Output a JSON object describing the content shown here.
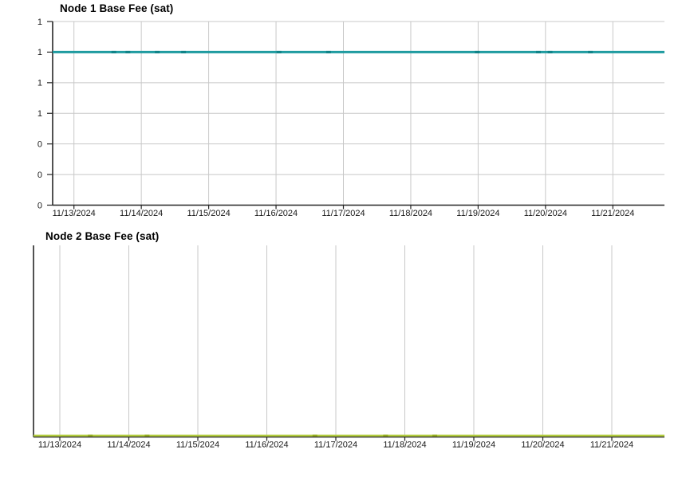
{
  "colors": {
    "background": "#ffffff",
    "grid": "#c8c8c8",
    "axis": "#262626",
    "tick_text": "#1a1a1a",
    "node1_line": "#1f9ba0",
    "node1_line_dark": "#0e8287",
    "node2_line": "#b2cc3e",
    "node2_line_dark": "#93ab1f"
  },
  "chart_data": [
    {
      "type": "line",
      "title": "Node 1 Base Fee (sat)",
      "xlabel": "",
      "ylabel": "",
      "categories": [
        "11/13/2024",
        "11/14/2024",
        "11/15/2024",
        "11/16/2024",
        "11/17/2024",
        "11/18/2024",
        "11/19/2024",
        "11/20/2024",
        "11/21/2024"
      ],
      "series": [
        {
          "name": "Node 1 base fee",
          "values": [
            1,
            1,
            1,
            1,
            1,
            1,
            1,
            1,
            1
          ],
          "color": "#1f9ba0"
        }
      ],
      "constant_value": 1,
      "ylim": [
        0,
        1.2
      ],
      "ytick_values": [
        1.2,
        1.0,
        0.8,
        0.6,
        0.4,
        0.2,
        0
      ],
      "ytick_labels": [
        "1",
        "1",
        "1",
        "1",
        "0",
        "0",
        "0"
      ],
      "grid": {
        "horizontal": true,
        "vertical": true
      },
      "legend": "none",
      "overlap_marks_frac": [
        0.1,
        0.123,
        0.171,
        0.214,
        0.37,
        0.451,
        0.694,
        0.794,
        0.813,
        0.879
      ]
    },
    {
      "type": "line",
      "title": "Node 2 Base Fee (sat)",
      "xlabel": "",
      "ylabel": "",
      "categories": [
        "11/13/2024",
        "11/14/2024",
        "11/15/2024",
        "11/16/2024",
        "11/17/2024",
        "11/18/2024",
        "11/19/2024",
        "11/20/2024",
        "11/21/2024"
      ],
      "series": [
        {
          "name": "Node 2 base fee",
          "values": [
            0,
            0,
            0,
            0,
            0,
            0,
            0,
            0,
            0
          ],
          "color": "#b2cc3e"
        }
      ],
      "constant_value": 0,
      "ylim": [
        0,
        1
      ],
      "ytick_values": [],
      "ytick_labels": [],
      "grid": {
        "horizontal": false,
        "vertical": true
      },
      "legend": "none",
      "overlap_marks_frac": [
        0.09,
        0.18,
        0.446,
        0.558,
        0.636
      ]
    }
  ]
}
